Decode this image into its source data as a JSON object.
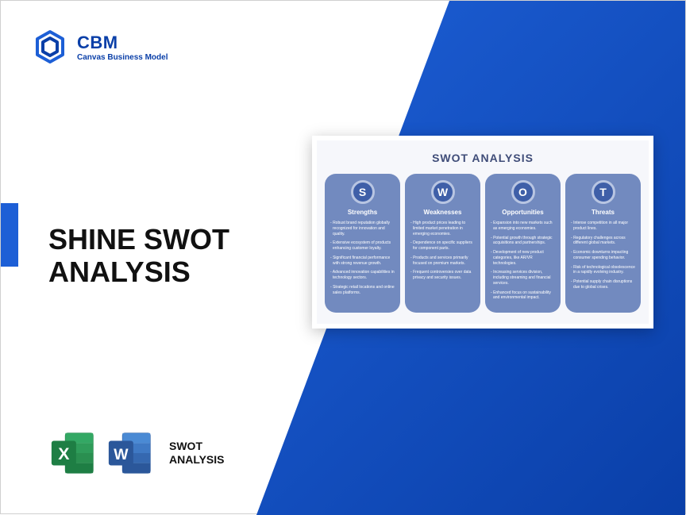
{
  "brand": {
    "name": "CBM",
    "tagline": "Canvas Business Model"
  },
  "headline": "SHINE SWOT ANALYSIS",
  "file_label": "SWOT\nANALYSIS",
  "colors": {
    "brand_blue": "#0a3fa8",
    "wedge_start": "#1d5fd6",
    "wedge_end": "#0a3fa8",
    "excel_green": "#1e7e44",
    "excel_green_light": "#33a864",
    "word_blue": "#2b579a",
    "word_blue_light": "#4a8ad4",
    "swot_col_bg": "#728abf",
    "swot_letter_bg": "#3f5fa8",
    "swot_title": "#3f4c78"
  },
  "swot": {
    "title": "SWOT ANALYSIS",
    "columns": [
      {
        "letter": "S",
        "heading": "Strengths",
        "items": [
          "Robust brand reputation globally recognized for innovation and quality.",
          "Extensive ecosystem of products enhancing customer loyalty.",
          "Significant financial performance with strong revenue growth.",
          "Advanced innovation capabilities in technology sectors.",
          "Strategic retail locations and online sales platforms."
        ]
      },
      {
        "letter": "W",
        "heading": "Weaknesses",
        "items": [
          "High product prices leading to limited market penetration in emerging economies.",
          "Dependence on specific suppliers for component parts.",
          "Products and services primarily focused on premium markets.",
          "Frequent controversies over data privacy and security issues."
        ]
      },
      {
        "letter": "O",
        "heading": "Opportunities",
        "items": [
          "Expansion into new markets such as emerging economies.",
          "Potential growth through strategic acquisitions and partnerships.",
          "Development of new product categories, like AR/VR technologies.",
          "Increasing services division, including streaming and financial services.",
          "Enhanced focus on sustainability and environmental impact."
        ]
      },
      {
        "letter": "T",
        "heading": "Threats",
        "items": [
          "Intense competition in all major product lines.",
          "Regulatory challenges across different global markets.",
          "Economic downturns impacting consumer spending behavior.",
          "Risk of technological obsolescence in a rapidly evolving industry.",
          "Potential supply chain disruptions due to global crises."
        ]
      }
    ]
  }
}
